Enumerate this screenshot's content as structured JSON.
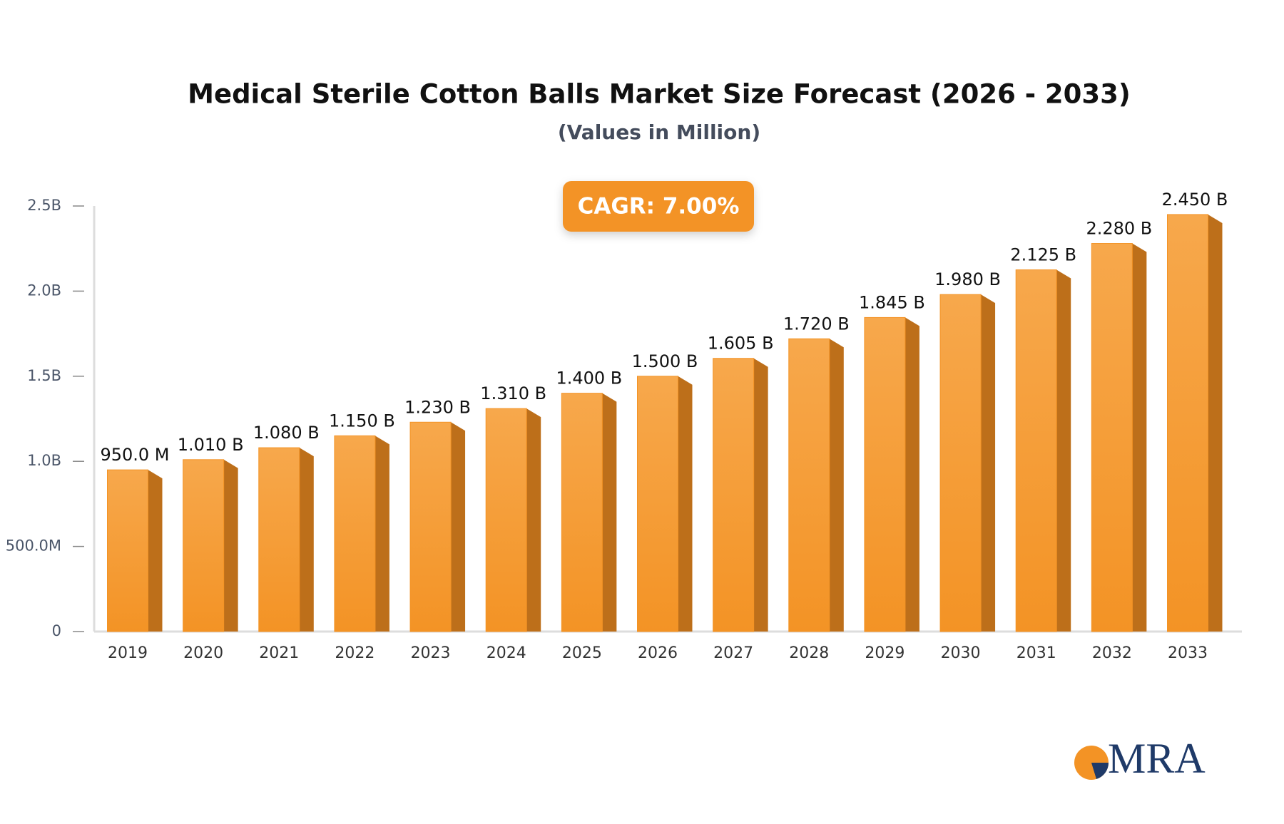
{
  "chart_data": {
    "type": "bar3d",
    "title": "Medical Sterile Cotton Balls Market Size Forecast (2026 - 2033)",
    "subtitle": "(Values in Million)",
    "annotation": "CAGR: 7.00%",
    "categories": [
      "2019",
      "2020",
      "2021",
      "2022",
      "2023",
      "2024",
      "2025",
      "2026",
      "2027",
      "2028",
      "2029",
      "2030",
      "2031",
      "2032",
      "2033"
    ],
    "values": [
      950,
      1010,
      1080,
      1150,
      1230,
      1310,
      1400,
      1500,
      1605,
      1720,
      1845,
      1980,
      2125,
      2280,
      2450
    ],
    "value_labels": [
      "950.0 M",
      "1.010 B",
      "1.080 B",
      "1.150 B",
      "1.230 B",
      "1.310 B",
      "1.400 B",
      "1.500 B",
      "1.605 B",
      "1.720 B",
      "1.845 B",
      "1.980 B",
      "2.125 B",
      "2.280 B",
      "2.450 B"
    ],
    "color": "#f39325",
    "ylim": [
      0,
      2500
    ],
    "yticks": [
      0,
      {
        "value": 500,
        "label": "500.0M"
      },
      {
        "value": 1000,
        "label": "1.0B"
      },
      {
        "value": 1500,
        "label": "1.5B"
      },
      {
        "value": 2000,
        "label": "2.0B"
      },
      {
        "value": 2500,
        "label": "2.5B"
      }
    ],
    "grid": false
  },
  "logo": {
    "text": "MRA"
  }
}
